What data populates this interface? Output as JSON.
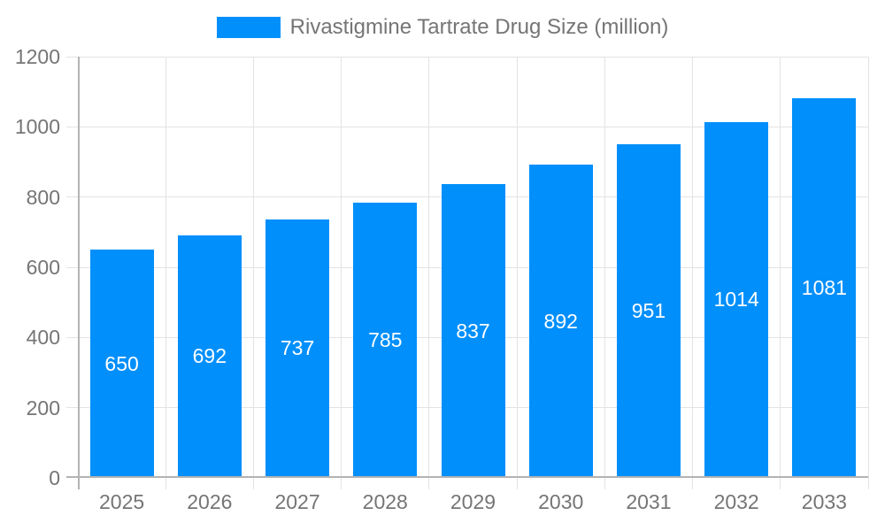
{
  "chart_data": {
    "type": "bar",
    "title": "",
    "categories": [
      "2025",
      "2026",
      "2027",
      "2028",
      "2029",
      "2030",
      "2031",
      "2032",
      "2033"
    ],
    "series": [
      {
        "name": "Rivastigmine Tartrate Drug Size (million)",
        "values": [
          650,
          692,
          737,
          785,
          837,
          892,
          951,
          1014,
          1081
        ],
        "color": "#008FFB"
      }
    ],
    "ylim": [
      0,
      1200
    ],
    "yticks": [
      0,
      200,
      400,
      600,
      800,
      1000,
      1200
    ],
    "xlabel": "",
    "ylabel": "",
    "grid": true,
    "legend_position": "top",
    "bar_labels_inside": true
  },
  "legend": {
    "label": "Rivastigmine Tartrate Drug Size (million)",
    "swatch_color": "#008FFB"
  },
  "colors": {
    "background": "#FFFFFF",
    "bar": "#008FFB",
    "grid_line": "#E3E3E3",
    "axis_line": "#B3B3B3",
    "axis_label_text": "#757575",
    "bar_value_text": "#FFFFFF"
  }
}
